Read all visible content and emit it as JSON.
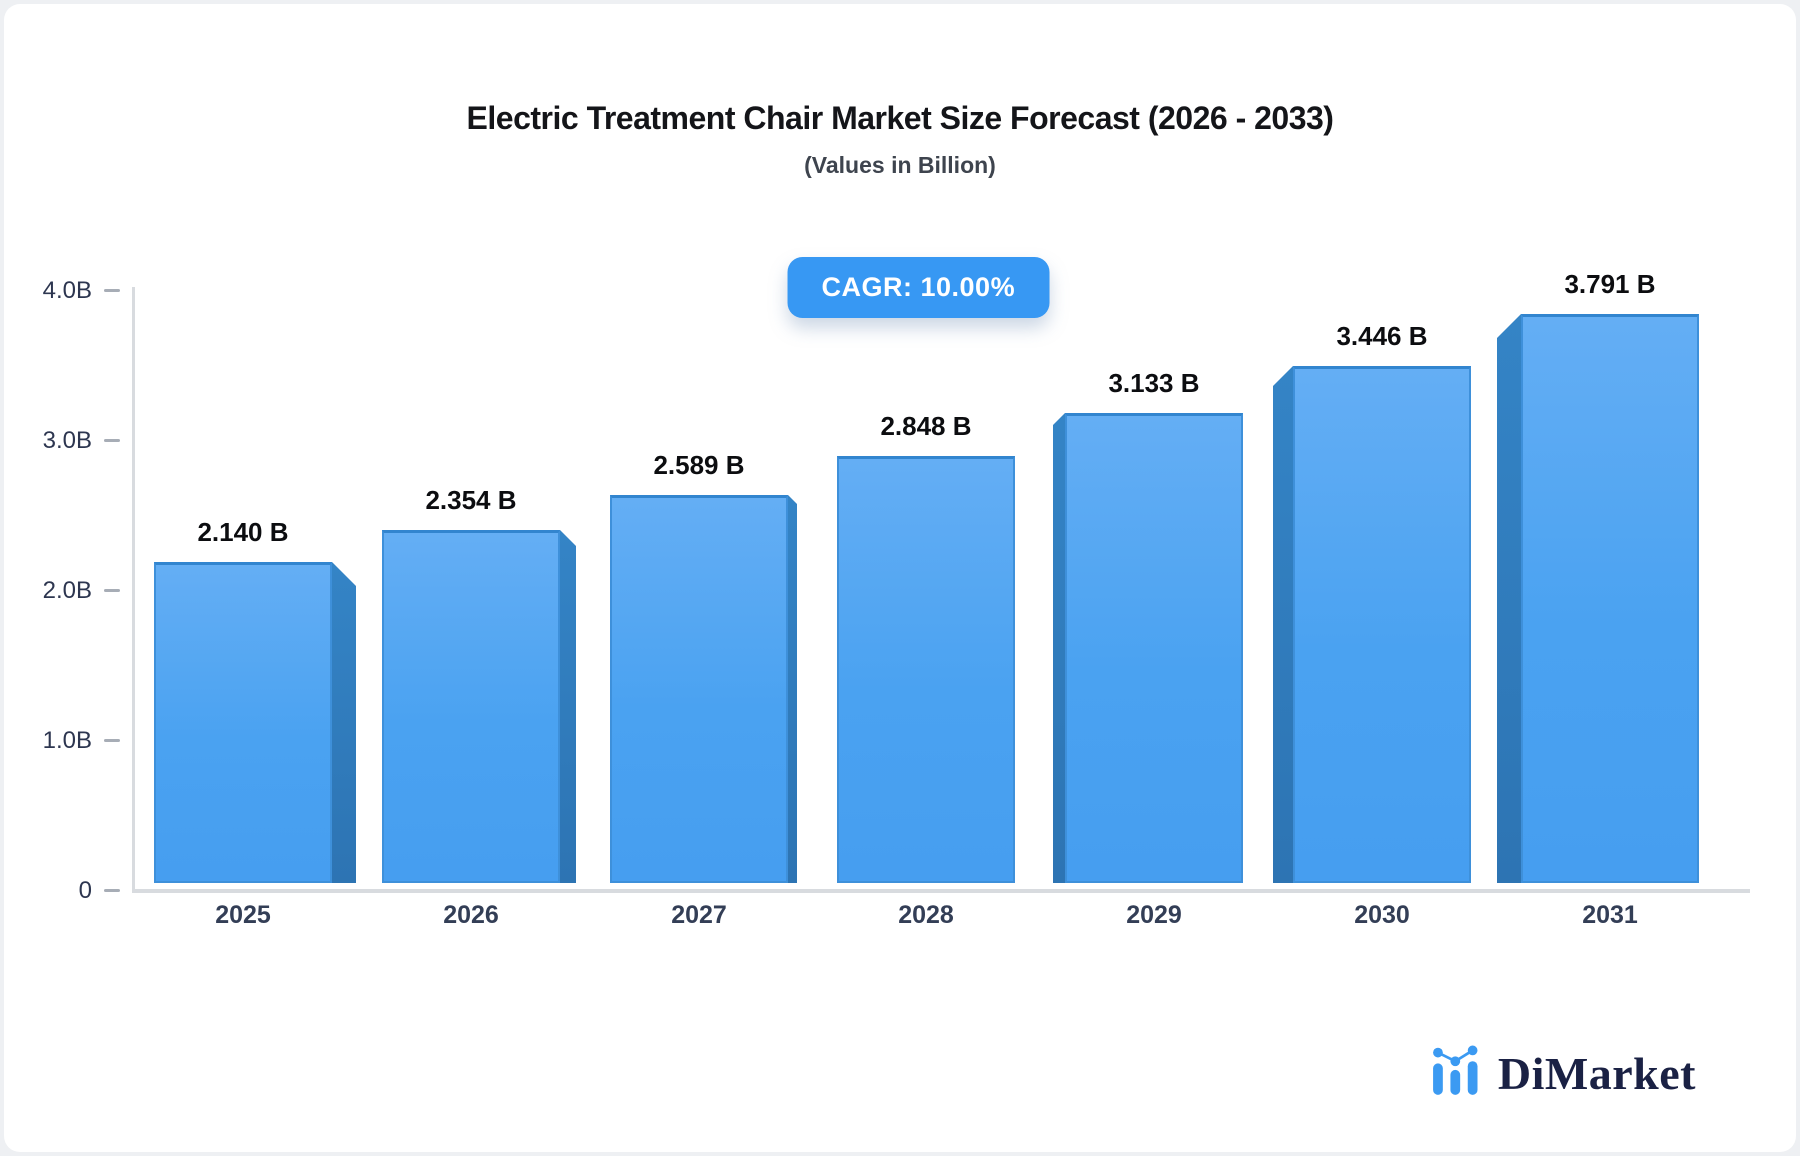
{
  "header": {
    "title": "Electric Treatment Chair Market Size Forecast (2026 - 2033)",
    "subtitle": "(Values in Billion)"
  },
  "cagr_badge": {
    "label": "CAGR: 10.00%",
    "bg_color": "#3798f3"
  },
  "chart_data": {
    "type": "bar",
    "title": "Electric Treatment Chair Market Size Forecast (2026 - 2033)",
    "subtitle": "(Values in Billion)",
    "cagr": "10.00%",
    "categories": [
      "2025",
      "2026",
      "2027",
      "2028",
      "2029",
      "2030",
      "2031"
    ],
    "values": [
      2.14,
      2.354,
      2.589,
      2.848,
      3.133,
      3.446,
      3.791
    ],
    "value_labels": [
      "2.140 B",
      "2.354 B",
      "2.589 B",
      "2.848 B",
      "3.133 B",
      "3.446 B",
      "3.791 B"
    ],
    "ylim": [
      0,
      4
    ],
    "yticks": [
      {
        "value": 4,
        "label": "4.0B"
      },
      {
        "value": 3,
        "label": "3.0B"
      },
      {
        "value": 2,
        "label": "2.0B"
      },
      {
        "value": 1,
        "label": "1.0B"
      },
      {
        "value": 0,
        "label": "0"
      }
    ],
    "grid": false,
    "legend": false,
    "bar_color": "#4aa2f0",
    "bar_side_color": "#2e79b8"
  },
  "footer": {
    "logo_icon": "bar-chart-icon",
    "logo_text": "DiMarket",
    "logo_icon_color": "#3b9af2",
    "logo_text_color": "#1a2144"
  }
}
